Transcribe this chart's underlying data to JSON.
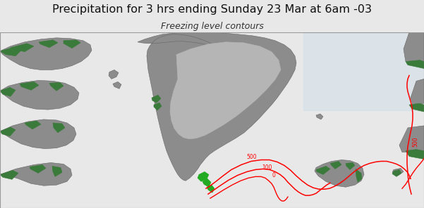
{
  "title": "Precipitation for 3 hrs ending Sunday 23 Mar at 6am -03",
  "subtitle": "Freezing level contours",
  "title_fontsize": 11.5,
  "subtitle_fontsize": 9,
  "title_color": "#111111",
  "subtitle_color": "#333333",
  "ocean_color": "#b8cfe0",
  "land_color": "#8c8c8c",
  "land_edge": "#666666",
  "ice_color": "#a0a0a0",
  "green_color": "#3a7a3a",
  "header_bg": "#e8e8e8",
  "fig_width": 6.01,
  "fig_height": 2.96,
  "dpi": 100
}
